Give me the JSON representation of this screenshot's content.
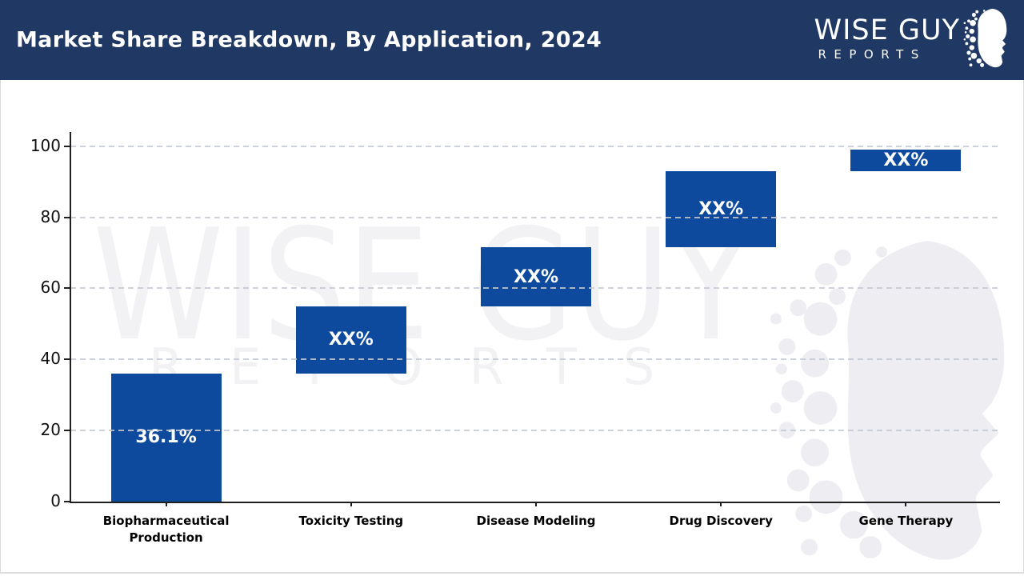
{
  "header": {
    "title": "Market Share Breakdown, By Application, 2024",
    "logo": {
      "name": "WISE GUY",
      "sub": "REPORTS"
    }
  },
  "watermark": {
    "name": "WISE GUY",
    "sub": "REPORTS"
  },
  "colors": {
    "header_bg": "#1f3864",
    "bar": "#0d4a9e",
    "bar_label": "#ffffff",
    "grid": "#c4c9d2",
    "axis": "#1f1f1f",
    "watermark": "#f2f2f5",
    "background": "#ffffff"
  },
  "chart_data": {
    "type": "bar",
    "variant": "waterfall",
    "title": "Market Share Breakdown, By Application, 2024",
    "categories": [
      "Biopharmaceutical Production",
      "Toxicity Testing",
      "Disease Modeling",
      "Drug Discovery",
      "Gene Therapy"
    ],
    "segments": [
      {
        "category": "Biopharmaceutical Production",
        "start": 0,
        "end": 36.1,
        "label": "36.1%"
      },
      {
        "category": "Toxicity Testing",
        "start": 36.1,
        "end": 55,
        "label": "XX%"
      },
      {
        "category": "Disease Modeling",
        "start": 55,
        "end": 71.5,
        "label": "XX%"
      },
      {
        "category": "Drug Discovery",
        "start": 71.5,
        "end": 93,
        "label": "XX%"
      },
      {
        "category": "Gene Therapy",
        "start": 93,
        "end": 99,
        "label": "XX%"
      }
    ],
    "xlabel": "",
    "ylabel": "",
    "ylim": [
      0,
      104
    ],
    "yticks": [
      0,
      20,
      40,
      60,
      80,
      100
    ],
    "grid": "horizontal-dashed",
    "legend": null
  }
}
